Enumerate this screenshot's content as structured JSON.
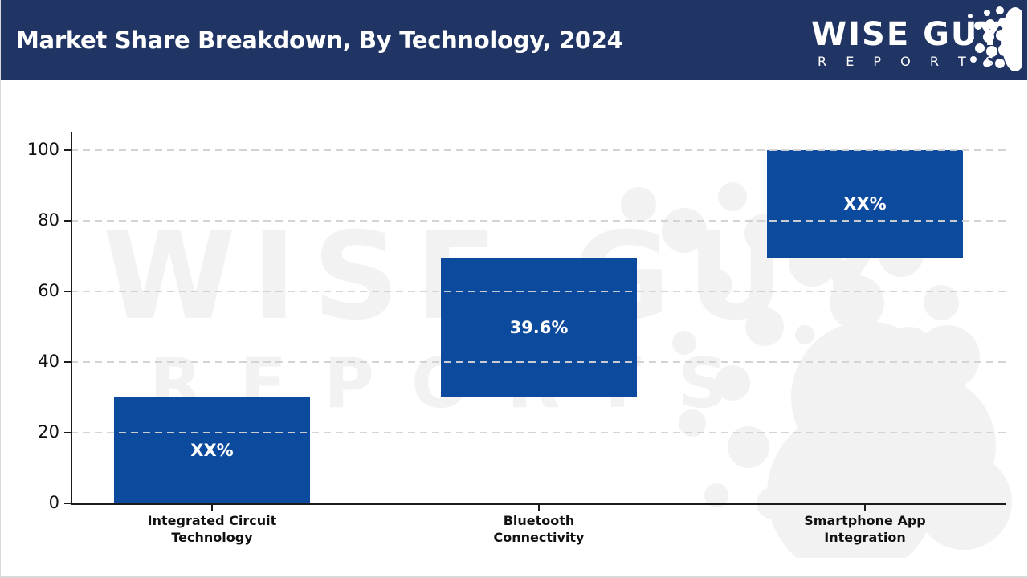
{
  "header": {
    "title": "Market Share Breakdown, By Technology, 2024",
    "logo": {
      "line1": "WISE GUY",
      "line2": "R E P O R T S"
    }
  },
  "watermark": {
    "line1": "WISE GUY",
    "line2": "REPORTS"
  },
  "colors": {
    "header_bg": "#213564",
    "bar": "#0c4a9e",
    "axis": "#1a1a1a",
    "gridline": "#d2d2d2",
    "bar_label_text": "#ffffff",
    "watermark": "#f2f2f2",
    "page_bg": "#ffffff",
    "frame_border": "#d9d9d9"
  },
  "chart_data": {
    "type": "bar",
    "variant": "floating-segment-waterfall",
    "title": "Market Share Breakdown, By Technology, 2024",
    "categories": [
      "Integrated Circuit\nTechnology",
      "Bluetooth\nConnectivity",
      "Smartphone App\nIntegration"
    ],
    "bars": [
      {
        "category": "Integrated Circuit Technology",
        "label": "XX%",
        "start": 0,
        "end": 30
      },
      {
        "category": "Bluetooth Connectivity",
        "label": "39.6%",
        "start": 30,
        "end": 69.6
      },
      {
        "category": "Smartphone App Integration",
        "label": "XX%",
        "start": 69.6,
        "end": 100
      }
    ],
    "segment_heights": [
      30,
      39.6,
      30.4
    ],
    "yticks": [
      0,
      20,
      40,
      60,
      80,
      100
    ],
    "ylim": [
      0,
      105
    ],
    "xlabel": "",
    "ylabel": "",
    "grid": "horizontal-dashed",
    "legend": false,
    "bar_color": "#0c4a9e"
  }
}
